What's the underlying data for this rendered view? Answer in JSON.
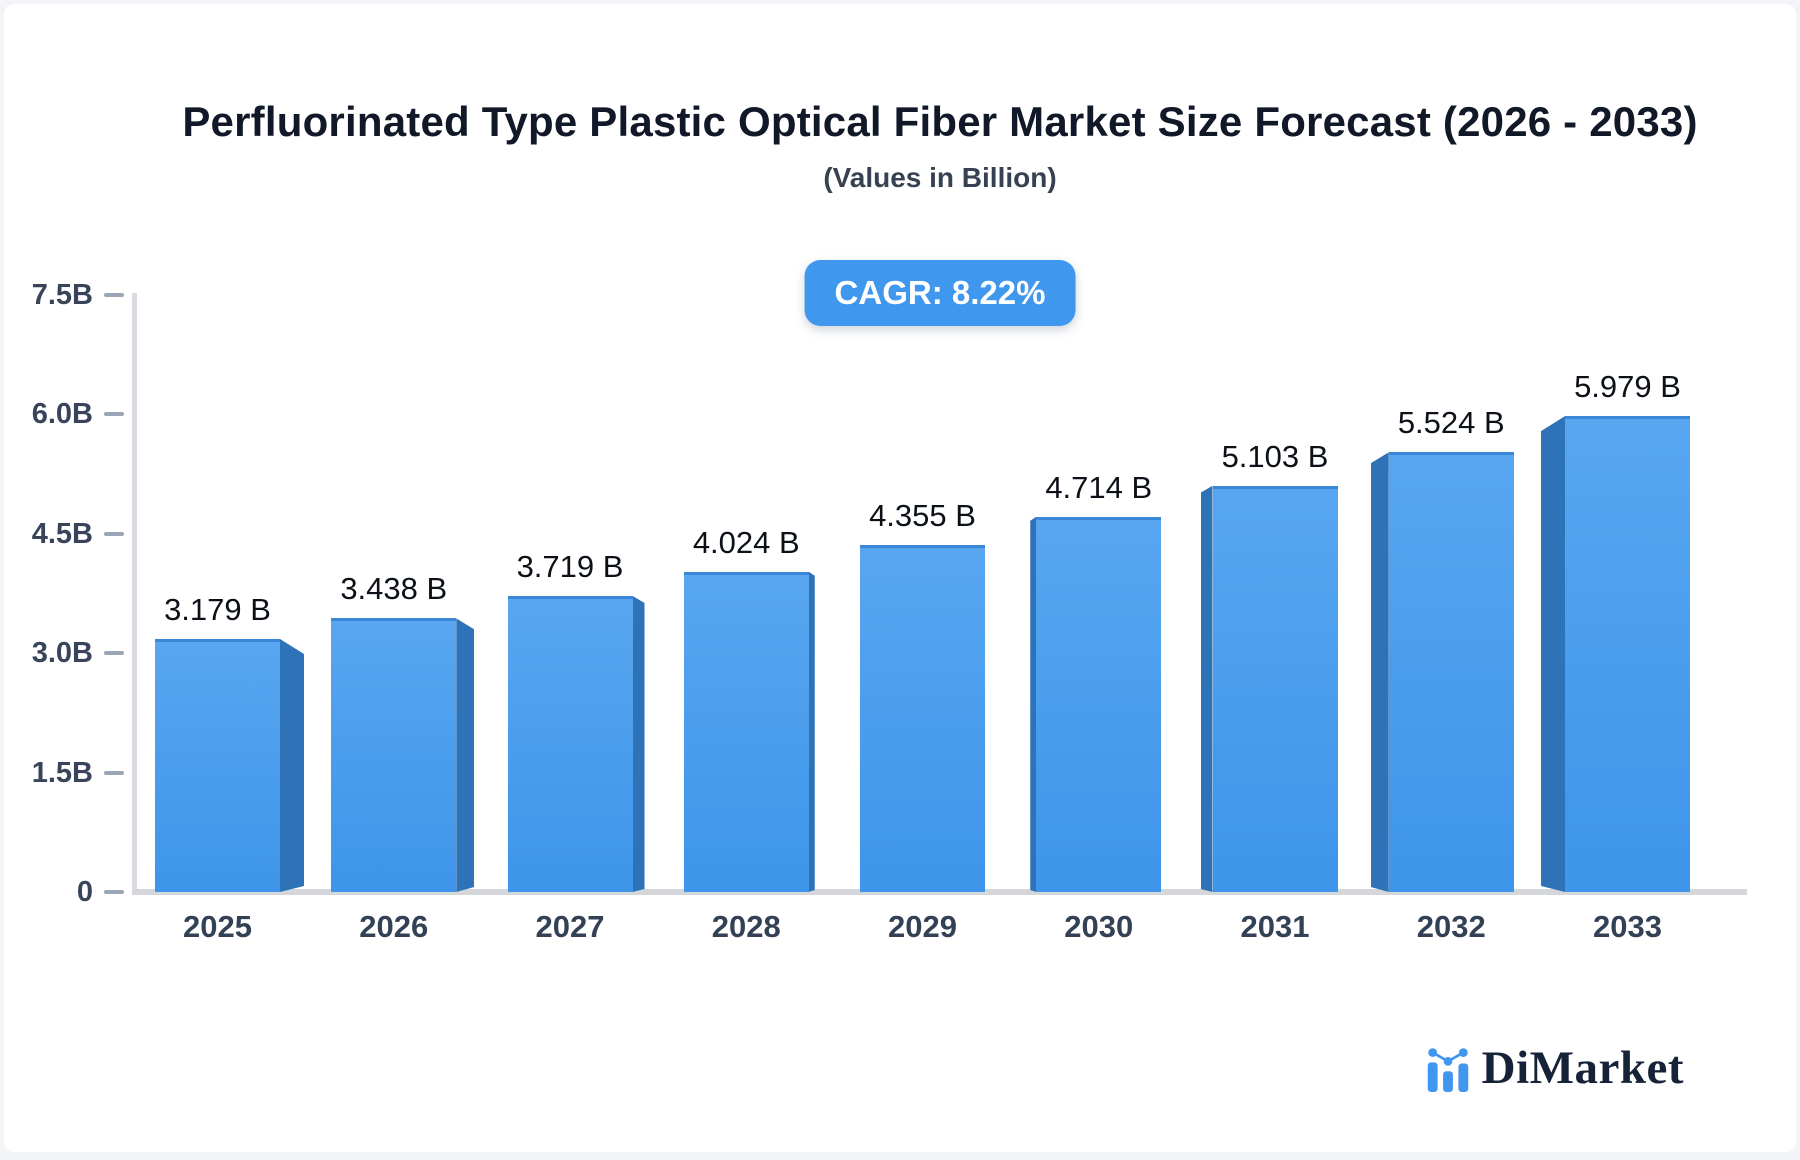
{
  "header": {
    "title": "Perfluorinated Type Plastic Optical Fiber Market Size Forecast (2026 - 2033)",
    "subtitle": "(Values in Billion)"
  },
  "badge": {
    "label": "CAGR: 8.22%",
    "color": "#3f97ee"
  },
  "chart_data": {
    "type": "bar",
    "title": "Perfluorinated Type Plastic Optical Fiber Market Size Forecast (2026 - 2033)",
    "subtitle": "(Values in Billion)",
    "unit": "Billion",
    "cagr": "8.22%",
    "categories": [
      "2025",
      "2026",
      "2027",
      "2028",
      "2029",
      "2030",
      "2031",
      "2032",
      "2033"
    ],
    "values": [
      3.179,
      3.438,
      3.719,
      4.024,
      4.355,
      4.714,
      5.103,
      5.524,
      5.979
    ],
    "value_labels": [
      "3.179 B",
      "3.438 B",
      "3.719 B",
      "4.024 B",
      "4.355 B",
      "4.714 B",
      "5.103 B",
      "5.524 B",
      "5.979 B"
    ],
    "ylim": [
      0,
      7.5
    ],
    "yticks": {
      "values": [
        0,
        1.5,
        3.0,
        4.5,
        6.0,
        7.5
      ],
      "labels": [
        "0",
        "1.5B",
        "3.0B",
        "4.5B",
        "6.0B",
        "7.5B"
      ]
    },
    "grid": false,
    "legend": null,
    "colors": {
      "bar_front_top": "#58a6f0",
      "bar_front_bottom": "#3e95ea",
      "bar_side": "#2e72b8",
      "bar_top_stroke": "#3a87d8",
      "axis": "#d9dbe0",
      "tick": "#9aa6b5",
      "value_label": "#0c1118",
      "axis_label": "#39445a"
    }
  },
  "footer": {
    "brand": "DiMarket",
    "logo_color": "#4196f0",
    "text_color": "#152238"
  }
}
